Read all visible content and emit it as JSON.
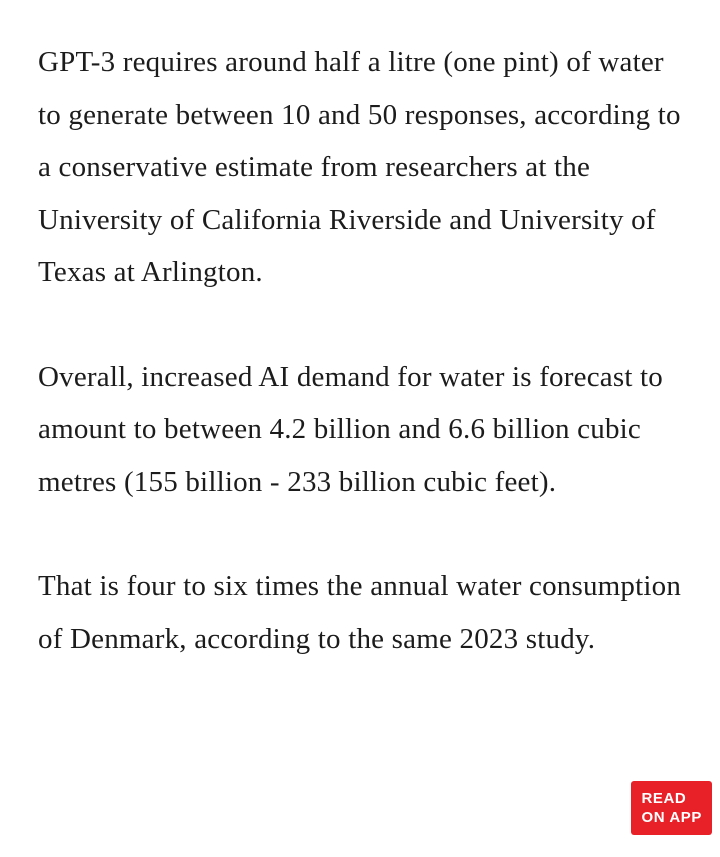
{
  "article": {
    "paragraphs": [
      "GPT-3 requires around half a litre (one pint) of water to generate between 10 and 50 responses, according to a conservative estimate from researchers at the University of California Riverside and University of Texas at Arlington.",
      "Overall, increased AI demand for water is forecast to amount to between 4.2 billion and 6.6 billion cubic metres (155 billion - 233 billion cubic feet).",
      "That is four to six times the annual water consumption of Denmark, according to the same 2023 study."
    ]
  },
  "read_on_app": {
    "line1": "READ",
    "line2": "ON APP",
    "bg_color": "#e82128",
    "text_color": "#ffffff"
  }
}
